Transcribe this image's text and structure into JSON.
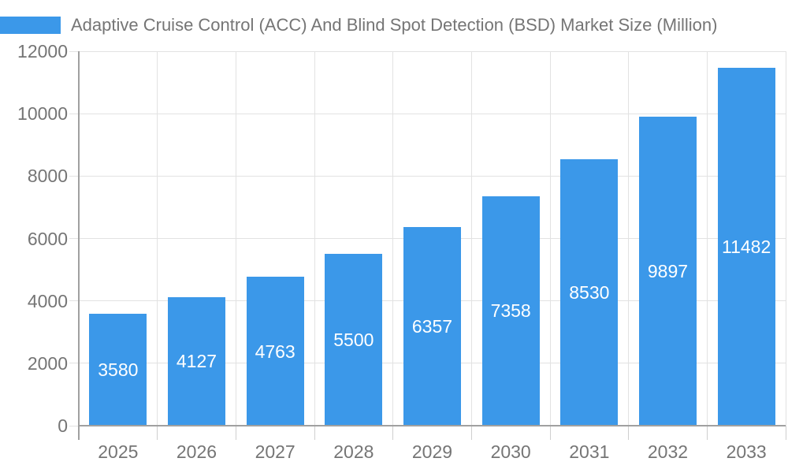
{
  "legend": {
    "label": "Adaptive Cruise Control (ACC) And Blind Spot Detection (BSD) Market Size (Million)"
  },
  "colors": {
    "bar": "#3B98E9",
    "bar_label": "#FFFFFF",
    "grid": "#E2E2E2",
    "axis": "#A0A0A0",
    "tick": "#CFCFCF",
    "text": "#757575",
    "background": "#FFFFFF"
  },
  "chart_data": {
    "type": "bar",
    "title": "Adaptive Cruise Control (ACC) And Blind Spot Detection (BSD) Market Size (Million)",
    "categories": [
      "2025",
      "2026",
      "2027",
      "2028",
      "2029",
      "2030",
      "2031",
      "2032",
      "2033"
    ],
    "values": [
      3580,
      4127,
      4763,
      5500,
      6357,
      7358,
      8530,
      9897,
      11482
    ],
    "xlabel": "",
    "ylabel": "",
    "ylim": [
      0,
      12000
    ],
    "ytick_step": 2000,
    "yticks": [
      0,
      2000,
      4000,
      6000,
      8000,
      10000,
      12000
    ],
    "grid": true,
    "legend_position": "top-left",
    "value_labels": "inside-center"
  }
}
